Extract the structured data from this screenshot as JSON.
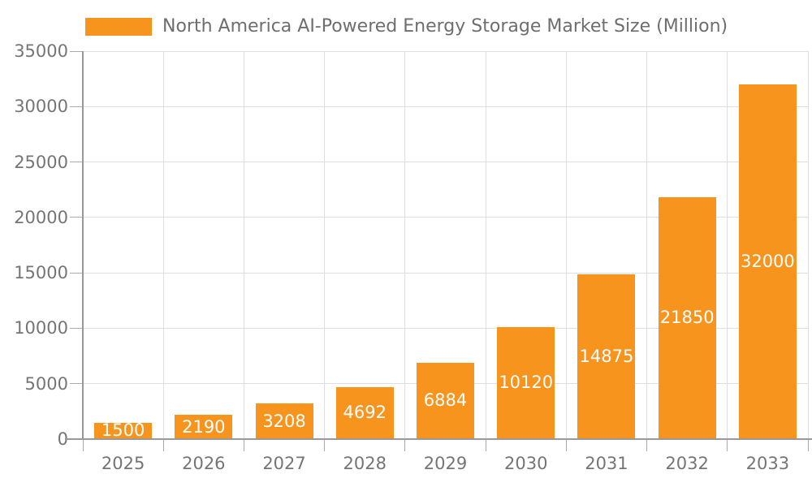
{
  "chart_data": {
    "type": "bar",
    "title": "North America AI-Powered Energy Storage Market Size (Million)",
    "legend": "North America AI-Powered Energy Storage Market Size (Million)",
    "legend_position": "top",
    "categories": [
      "2025",
      "2026",
      "2027",
      "2028",
      "2029",
      "2030",
      "2031",
      "2032",
      "2033"
    ],
    "series": [
      {
        "name": "North America AI-Powered Energy Storage Market Size (Million)",
        "values": [
          1500,
          2190,
          3208,
          4692,
          6884,
          10120,
          14875,
          21850,
          32000
        ]
      }
    ],
    "xlabel": "",
    "ylabel": "",
    "ylim": [
      0,
      35000
    ],
    "ytick_step": 5000,
    "yticks": [
      0,
      5000,
      10000,
      15000,
      20000,
      25000,
      30000,
      35000
    ],
    "grid": true,
    "value_label_position": "inside-center"
  },
  "colors": {
    "bar": "#F7941E",
    "grid_line": "#DEDEDE",
    "axis_line": "#999999",
    "tick_mark": "#AAAAAA",
    "axis_text": "#757575",
    "legend_text": "#6E6E6E",
    "value_label_text": "#FFFFFF",
    "background": "#FFFFFF"
  }
}
